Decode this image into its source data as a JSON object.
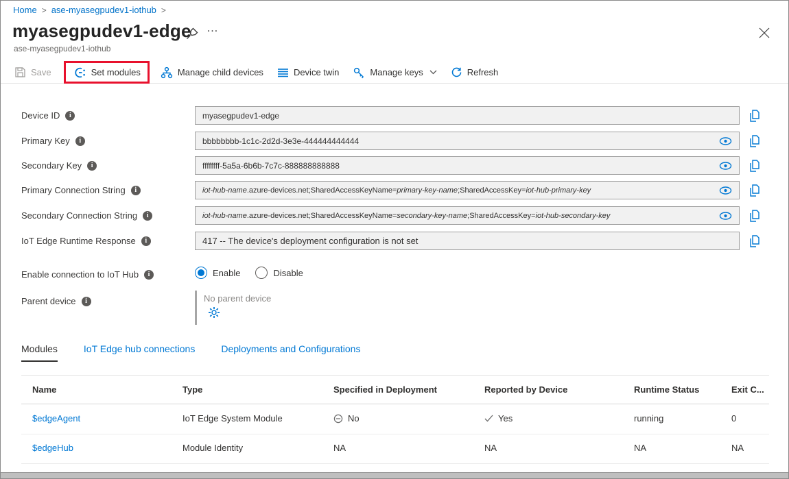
{
  "breadcrumb": {
    "separator": ">",
    "items": [
      {
        "label": "Home"
      },
      {
        "label": "ase-myasegpudev1-iothub"
      }
    ]
  },
  "header": {
    "title": "myasegpudev1-edge",
    "subtitle": "ase-myasegpudev1-iothub",
    "more_label": "…"
  },
  "toolbar": {
    "save_label": "Save",
    "set_modules_label": "Set modules",
    "manage_child_devices_label": "Manage child devices",
    "device_twin_label": "Device twin",
    "manage_keys_label": "Manage keys",
    "refresh_label": "Refresh"
  },
  "form": {
    "device_id": {
      "label": "Device ID",
      "value": "myasegpudev1-edge"
    },
    "primary_key": {
      "label": "Primary Key",
      "value": "bbbbbbbb-1c1c-2d2d-3e3e-444444444444"
    },
    "secondary_key": {
      "label": "Secondary Key",
      "value": "ffffffff-5a5a-6b6b-7c7c-888888888888"
    },
    "primary_connection_string": {
      "label": "Primary Connection String",
      "segments": [
        {
          "text": "iot-hub-name",
          "italic": true
        },
        {
          "text": ".azure-devices.net;SharedAccessKeyName=",
          "italic": false
        },
        {
          "text": "primary-key-name",
          "italic": true
        },
        {
          "text": ";SharedAccessKey=",
          "italic": false
        },
        {
          "text": "iot-hub-primary-key",
          "italic": true
        }
      ]
    },
    "secondary_connection_string": {
      "label": "Secondary Connection String",
      "segments": [
        {
          "text": "iot-hub-name",
          "italic": true
        },
        {
          "text": ".azure-devices.net;SharedAccessKeyName=",
          "italic": false
        },
        {
          "text": "secondary-key-name",
          "italic": true
        },
        {
          "text": ";SharedAccessKey=",
          "italic": false
        },
        {
          "text": "iot-hub-secondary-key",
          "italic": true
        }
      ]
    },
    "runtime_response": {
      "label": "IoT Edge Runtime Response",
      "value": "417 -- The device's deployment configuration is not set"
    },
    "connection": {
      "label": "Enable connection to IoT Hub",
      "options": [
        "Enable",
        "Disable"
      ],
      "selected": "Enable"
    },
    "parent_device": {
      "label": "Parent device",
      "value": "No parent device"
    }
  },
  "tabs": [
    {
      "label": "Modules",
      "active": true
    },
    {
      "label": "IoT Edge hub connections",
      "active": false
    },
    {
      "label": "Deployments and Configurations",
      "active": false
    }
  ],
  "modules_table": {
    "columns": [
      "Name",
      "Type",
      "Specified in Deployment",
      "Reported by Device",
      "Runtime Status",
      "Exit C..."
    ],
    "rows": [
      {
        "name": "$edgeAgent",
        "type": "IoT Edge System Module",
        "specified": "No",
        "reported": "Yes",
        "runtime_status": "running",
        "exit_code": "0"
      },
      {
        "name": "$edgeHub",
        "type": "Module Identity",
        "specified": "NA",
        "reported": "NA",
        "runtime_status": "NA",
        "exit_code": "NA"
      }
    ]
  },
  "icons": {
    "save": "floppy-disk",
    "set_modules": "iot-edge-dashed-circle",
    "manage_child_devices": "org-tree",
    "device_twin": "list-lines",
    "manage_keys": "key",
    "refresh": "circular-arrow",
    "info": "info-circle",
    "eye": "eye",
    "copy": "overlapping-pages",
    "gear": "gear",
    "pin": "pushpin",
    "close": "x",
    "specified_no": "circle-minus",
    "reported_yes": "checkmark"
  },
  "colors": {
    "accent": "#0078d4",
    "highlight_red": "#e8112d",
    "input_bg": "#f1f1f1"
  }
}
